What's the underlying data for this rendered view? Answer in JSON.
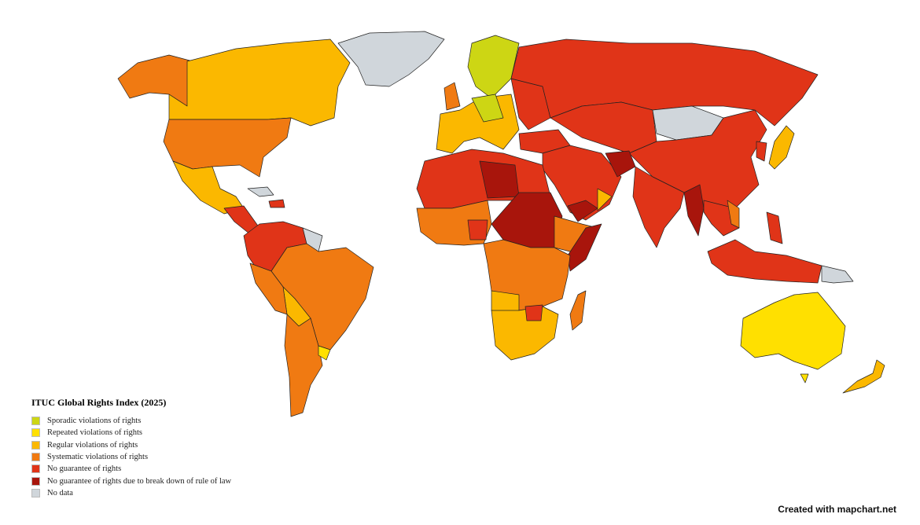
{
  "legend": {
    "title": "ITUC Global Rights Index (2025)",
    "items": [
      {
        "label": "Sporadic violations of rights",
        "color": "#cdd614"
      },
      {
        "label": "Repeated violations of rights",
        "color": "#ffe000"
      },
      {
        "label": "Regular violations of rights",
        "color": "#fbb800"
      },
      {
        "label": "Systematic violations of rights",
        "color": "#f07a12"
      },
      {
        "label": "No guarantee of rights",
        "color": "#e03418"
      },
      {
        "label": "No guarantee of rights due to break down of rule of law",
        "color": "#a8150c"
      },
      {
        "label": "No data",
        "color": "#d0d6db"
      }
    ]
  },
  "credit": "Created with mapchart.net"
}
